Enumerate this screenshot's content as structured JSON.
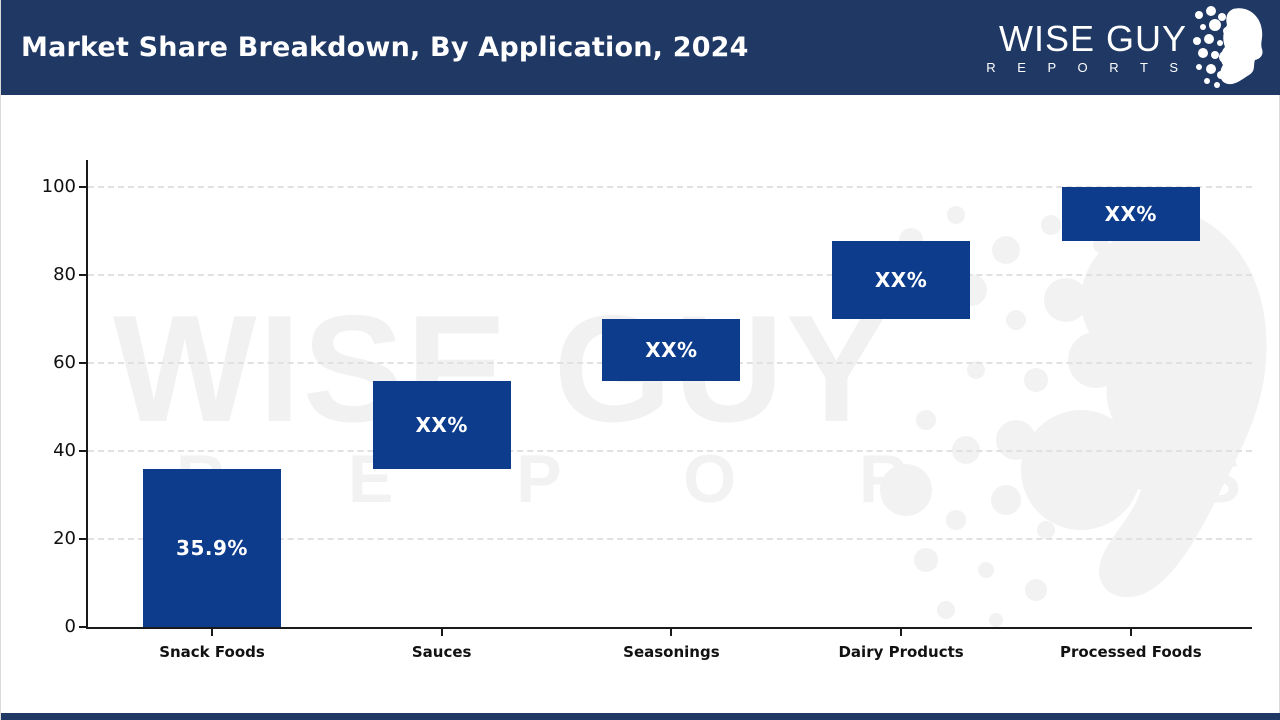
{
  "header": {
    "title": "Market Share Breakdown, By Application, 2024",
    "logo": {
      "line1": "WISE GUY",
      "line2": "R E P O R T S"
    }
  },
  "watermark": {
    "line1": "WISE GUY",
    "line2": "R E P O R T S"
  },
  "footer": {},
  "colors": {
    "header_bg": "#1f3864",
    "bar_fill": "#0d3c8c",
    "bar_label_text": "#ffffff",
    "axis": "#1a1a1a",
    "gridline": "#e1e1e1",
    "watermark": "#f1f1f1"
  },
  "chart_data": {
    "type": "bar",
    "subtype": "waterfall",
    "title": "Market Share Breakdown, By Application, 2024",
    "categories": [
      "Snack Foods",
      "Sauces",
      "Seasonings",
      "Dairy Products",
      "Processed Foods"
    ],
    "segments": [
      {
        "category": "Snack Foods",
        "start": 0,
        "end": 35.9,
        "label": "35.9%"
      },
      {
        "category": "Sauces",
        "start": 35.9,
        "end": 56.0,
        "label": "XX%"
      },
      {
        "category": "Seasonings",
        "start": 56.0,
        "end": 70.0,
        "label": "XX%"
      },
      {
        "category": "Dairy Products",
        "start": 70.0,
        "end": 87.7,
        "label": "XX%"
      },
      {
        "category": "Processed Foods",
        "start": 87.7,
        "end": 100,
        "label": "XX%"
      }
    ],
    "xlabel": "",
    "ylabel": "",
    "ylim": [
      0,
      100
    ],
    "yticks": [
      0,
      20,
      40,
      60,
      80,
      100
    ],
    "grid": "horizontal-dashed",
    "legend": null,
    "bar_color": "#0d3c8c",
    "data_label_color": "#ffffff"
  }
}
